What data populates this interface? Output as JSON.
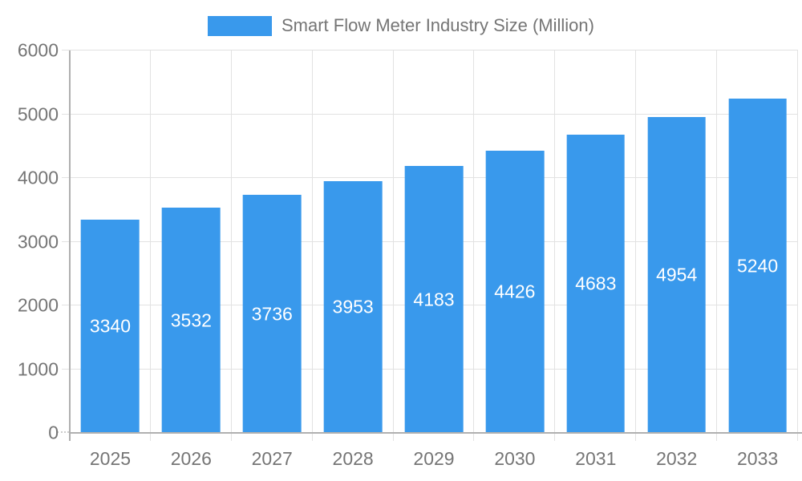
{
  "legend": {
    "label": "Smart Flow Meter Industry Size (Million)"
  },
  "chart_data": {
    "type": "bar",
    "categories": [
      "2025",
      "2026",
      "2027",
      "2028",
      "2029",
      "2030",
      "2031",
      "2032",
      "2033"
    ],
    "values": [
      3340,
      3532,
      3736,
      3953,
      4183,
      4426,
      4683,
      4954,
      5240
    ],
    "title": "",
    "xlabel": "",
    "ylabel": "",
    "ylim": [
      0,
      6000
    ],
    "ytick_step": 1000,
    "yticks": [
      0,
      1000,
      2000,
      3000,
      4000,
      5000,
      6000
    ],
    "grid": true,
    "legend_entries": [
      "Smart Flow Meter Industry Size (Million)"
    ],
    "legend_position": "top",
    "bar_labels_inside": true
  },
  "colors": {
    "bar": "#3999EC",
    "grid": "#e2e2e2",
    "axis": "#b0b0b0",
    "text": "#757575",
    "value_label": "#ffffff",
    "background": "#ffffff"
  }
}
